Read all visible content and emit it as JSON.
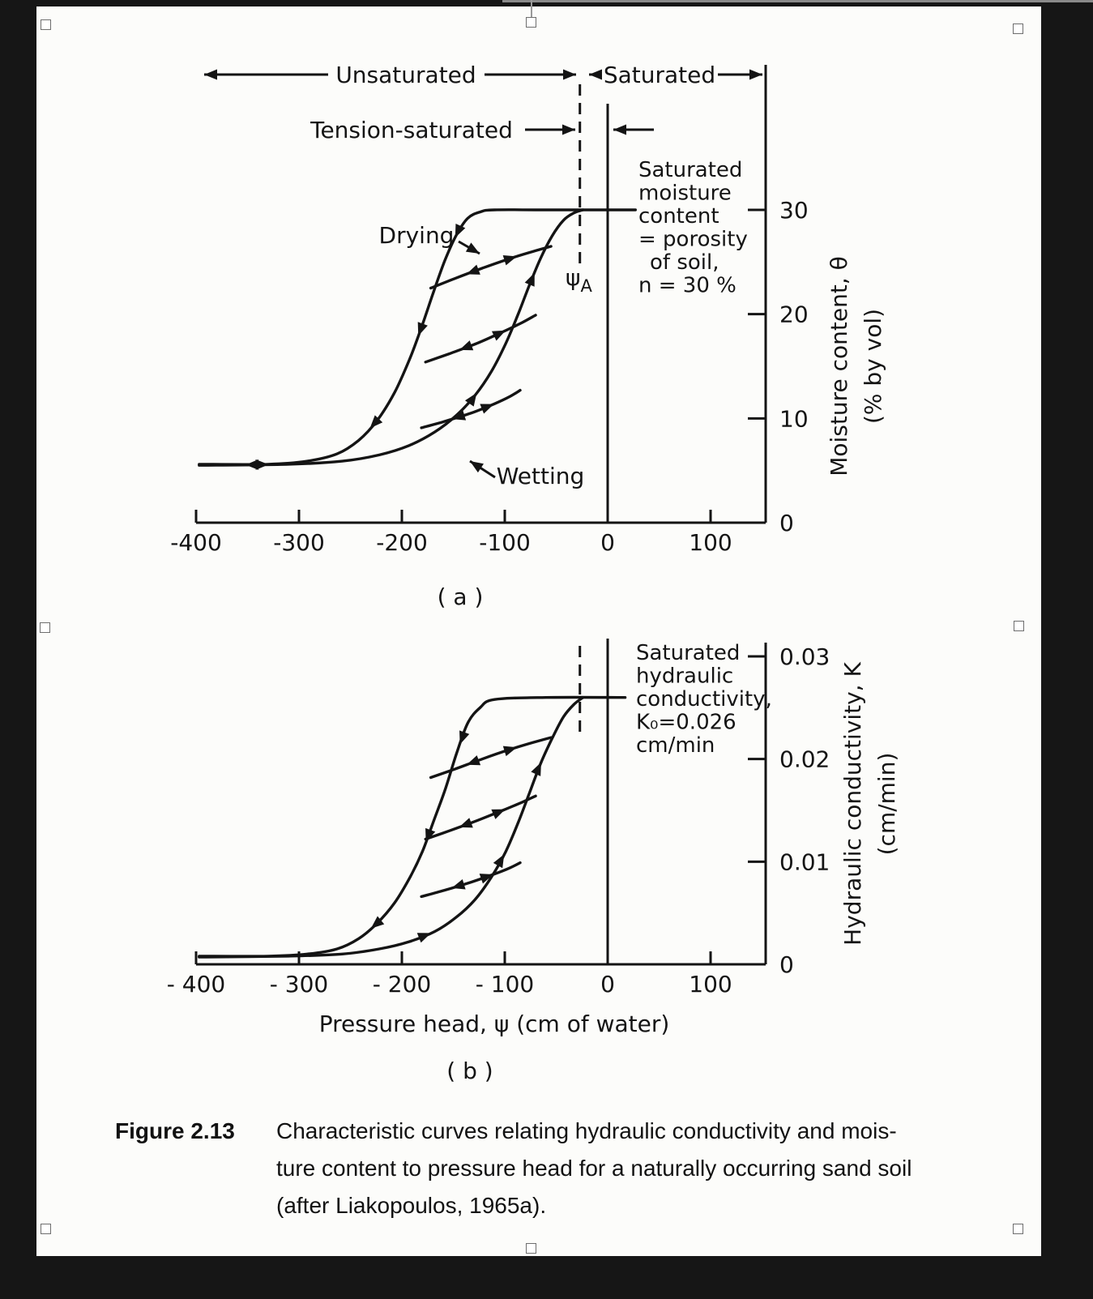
{
  "window": {
    "background": "#161616",
    "page_background": "#fcfcfa"
  },
  "figure_caption": {
    "label": "Figure 2.13",
    "lines": [
      "Characteristic curves relating hydraulic conductivity and mois-",
      "ture content to pressure head for a naturally occurring sand soil",
      "(after Liakopoulos, 1965a)."
    ]
  },
  "chart_data": [
    {
      "id": "a",
      "type": "line",
      "panel_label": "( a )",
      "ylabel": "Moisture content, θ",
      "ylabel_units": "(% by vol)",
      "xlim": [
        -430,
        155
      ],
      "ylim": [
        0,
        32
      ],
      "x_ticks": [
        -400,
        -300,
        -200,
        -100,
        0,
        100
      ],
      "x_tick_labels": [
        "-400",
        "-300",
        "-200",
        "-100",
        "0",
        "100"
      ],
      "y_ticks": [
        0,
        10,
        20,
        30
      ],
      "y_tick_labels": [
        "0",
        "10",
        "20",
        "30"
      ],
      "guides": {
        "water_table_psi": 0,
        "air_entry_psi": -27
      },
      "annotations": {
        "unsaturated": "Unsaturated",
        "saturated": "Saturated",
        "tension_saturated": "Tension-saturated",
        "drying": "Drying",
        "wetting": "Wetting",
        "psi": "ψ",
        "psi_sub": "A",
        "saturated_block": [
          "Saturated",
          "moisture",
          "content",
          "= porosity",
          "of soil,",
          "n = 30 %"
        ]
      },
      "series": [
        {
          "name": "drying-boundary",
          "points": [
            [
              -397,
              5.6
            ],
            [
              -330,
              5.6
            ],
            [
              -292,
              5.9
            ],
            [
              -263,
              6.6
            ],
            [
              -242,
              7.9
            ],
            [
              -224,
              9.8
            ],
            [
              -207,
              12.5
            ],
            [
              -192,
              15.8
            ],
            [
              -180,
              19
            ],
            [
              -169,
              22.2
            ],
            [
              -158,
              25.2
            ],
            [
              -147,
              27.6
            ],
            [
              -136,
              29.2
            ],
            [
              -124,
              29.8
            ],
            [
              -110,
              30
            ],
            [
              -60,
              30
            ],
            [
              27,
              30
            ]
          ],
          "arrows": [
            {
              "t": 0.31,
              "dir": -1
            },
            {
              "t": 0.49,
              "dir": -1
            },
            {
              "t": 0.67,
              "dir": -1
            }
          ]
        },
        {
          "name": "wetting-boundary",
          "points": [
            [
              -397,
              5.5
            ],
            [
              -310,
              5.6
            ],
            [
              -258,
              5.9
            ],
            [
              -222,
              6.5
            ],
            [
              -193,
              7.4
            ],
            [
              -168,
              8.7
            ],
            [
              -147,
              10.3
            ],
            [
              -129,
              12.2
            ],
            [
              -113,
              14.5
            ],
            [
              -99,
              17.2
            ],
            [
              -87,
              20
            ],
            [
              -76,
              22.8
            ],
            [
              -65,
              25.4
            ],
            [
              -54,
              27.5
            ],
            [
              -43,
              29
            ],
            [
              -33,
              29.7
            ],
            [
              -24,
              30
            ]
          ],
          "arrows": [
            {
              "t": 0.09,
              "dir": -1
            },
            {
              "t": 0.135,
              "dir": 1
            },
            {
              "t": 0.58,
              "dir": 1
            },
            {
              "t": 0.84,
              "dir": 1
            }
          ]
        },
        {
          "name": "scanning-1",
          "points": [
            [
              -172,
              22.5
            ],
            [
              -149,
              23.4
            ],
            [
              -122,
              24.4
            ],
            [
              -96,
              25.3
            ],
            [
              -73,
              26
            ],
            [
              -55,
              26.5
            ]
          ],
          "arrows": [
            {
              "t": 0.3,
              "dir": -1
            },
            {
              "t": 0.72,
              "dir": 1
            }
          ]
        },
        {
          "name": "scanning-2",
          "points": [
            [
              -177,
              15.4
            ],
            [
              -154,
              16.2
            ],
            [
              -127,
              17.2
            ],
            [
              -102,
              18.3
            ],
            [
              -83,
              19.2
            ],
            [
              -70,
              19.9
            ]
          ],
          "arrows": [
            {
              "t": 0.3,
              "dir": -1
            },
            {
              "t": 0.72,
              "dir": 1
            }
          ]
        },
        {
          "name": "scanning-3",
          "points": [
            [
              -181,
              9.1
            ],
            [
              -159,
              9.7
            ],
            [
              -133,
              10.5
            ],
            [
              -110,
              11.4
            ],
            [
              -95,
              12.1
            ],
            [
              -85,
              12.7
            ]
          ],
          "arrows": [
            {
              "t": 0.3,
              "dir": -1
            },
            {
              "t": 0.72,
              "dir": 1
            }
          ]
        }
      ]
    },
    {
      "id": "b",
      "type": "line",
      "panel_label": "( b )",
      "xlabel": "Pressure head, ψ (cm of water)",
      "ylabel": "Hydraulic conductivity, K",
      "ylabel_units": "(cm/min)",
      "xlim": [
        -430,
        155
      ],
      "ylim": [
        0,
        0.032
      ],
      "x_ticks": [
        -400,
        -300,
        -200,
        -100,
        0,
        100
      ],
      "x_tick_labels": [
        "- 400",
        "- 300",
        "- 200",
        "- 100",
        "0",
        "100"
      ],
      "y_ticks": [
        0,
        0.01,
        0.02,
        0.03
      ],
      "y_tick_labels": [
        "0",
        "0.01",
        "0.02",
        "0.03"
      ],
      "guides": {
        "water_table_psi": 0,
        "air_entry_psi": -27
      },
      "annotations": {
        "saturated_block": [
          "Saturated",
          "hydraulic",
          "conductivity,",
          "K₀=0.026",
          "cm/min"
        ]
      },
      "series": [
        {
          "name": "drying-boundary",
          "points": [
            [
              -397,
              0.0008
            ],
            [
              -330,
              0.0008
            ],
            [
              -292,
              0.001
            ],
            [
              -263,
              0.0015
            ],
            [
              -242,
              0.0025
            ],
            [
              -224,
              0.004
            ],
            [
              -207,
              0.006
            ],
            [
              -192,
              0.0085
            ],
            [
              -180,
              0.011
            ],
            [
              -169,
              0.014
            ],
            [
              -158,
              0.017
            ],
            [
              -147,
              0.0205
            ],
            [
              -136,
              0.0235
            ],
            [
              -124,
              0.025
            ],
            [
              -110,
              0.0258
            ],
            [
              -60,
              0.026
            ],
            [
              17,
              0.026
            ]
          ],
          "arrows": [
            {
              "t": 0.31,
              "dir": -1
            },
            {
              "t": 0.49,
              "dir": -1
            },
            {
              "t": 0.67,
              "dir": -1
            }
          ]
        },
        {
          "name": "wetting-boundary",
          "points": [
            [
              -397,
              0.0007
            ],
            [
              -310,
              0.0008
            ],
            [
              -258,
              0.001
            ],
            [
              -222,
              0.0015
            ],
            [
              -193,
              0.0022
            ],
            [
              -168,
              0.0032
            ],
            [
              -147,
              0.0046
            ],
            [
              -129,
              0.0063
            ],
            [
              -113,
              0.0085
            ],
            [
              -99,
              0.011
            ],
            [
              -87,
              0.0138
            ],
            [
              -76,
              0.0167
            ],
            [
              -65,
              0.0196
            ],
            [
              -54,
              0.022
            ],
            [
              -43,
              0.0241
            ],
            [
              -33,
              0.0253
            ],
            [
              -24,
              0.026
            ]
          ],
          "arrows": [
            {
              "t": 0.45,
              "dir": 1
            },
            {
              "t": 0.66,
              "dir": 1
            },
            {
              "t": 0.85,
              "dir": 1
            }
          ]
        },
        {
          "name": "scanning-1",
          "points": [
            [
              -172,
              0.0182
            ],
            [
              -149,
              0.019
            ],
            [
              -122,
              0.02
            ],
            [
              -96,
              0.0209
            ],
            [
              -73,
              0.0216
            ],
            [
              -55,
              0.0221
            ]
          ],
          "arrows": [
            {
              "t": 0.3,
              "dir": -1
            },
            {
              "t": 0.72,
              "dir": 1
            }
          ]
        },
        {
          "name": "scanning-2",
          "points": [
            [
              -177,
              0.0122
            ],
            [
              -154,
              0.013
            ],
            [
              -127,
              0.014
            ],
            [
              -102,
              0.015
            ],
            [
              -83,
              0.0158
            ],
            [
              -70,
              0.0164
            ]
          ],
          "arrows": [
            {
              "t": 0.3,
              "dir": -1
            },
            {
              "t": 0.72,
              "dir": 1
            }
          ]
        },
        {
          "name": "scanning-3",
          "points": [
            [
              -181,
              0.0066
            ],
            [
              -159,
              0.0072
            ],
            [
              -133,
              0.008
            ],
            [
              -110,
              0.0088
            ],
            [
              -95,
              0.0094
            ],
            [
              -85,
              0.0099
            ]
          ],
          "arrows": [
            {
              "t": 0.3,
              "dir": -1
            },
            {
              "t": 0.72,
              "dir": 1
            }
          ]
        }
      ]
    }
  ]
}
